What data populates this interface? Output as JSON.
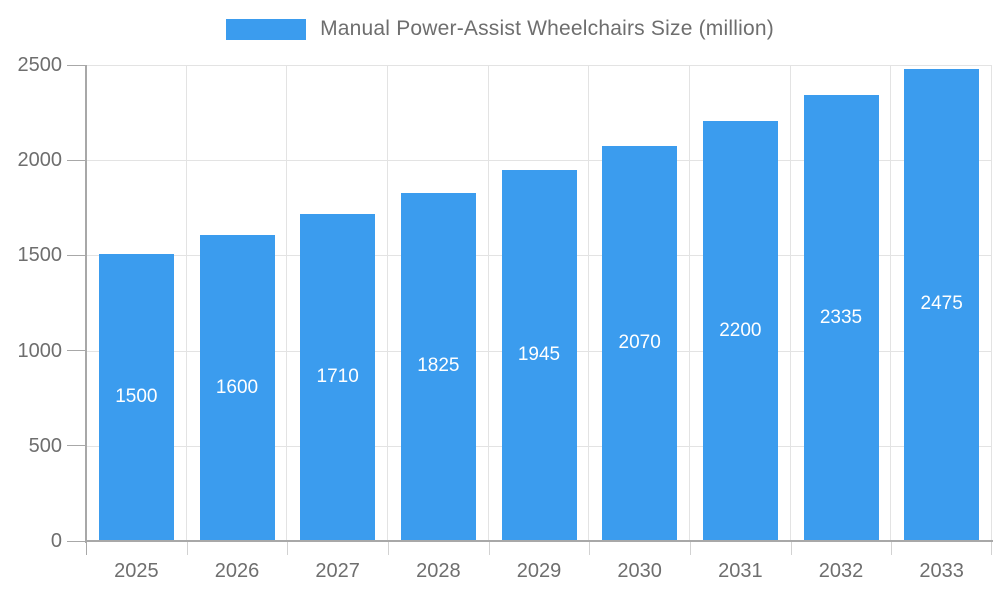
{
  "legend": {
    "label": "Manual Power-Assist Wheelchairs Size (million)"
  },
  "chart_data": {
    "type": "bar",
    "title": "Manual Power-Assist Wheelchairs Size (million)",
    "categories": [
      "2025",
      "2026",
      "2027",
      "2028",
      "2029",
      "2030",
      "2031",
      "2032",
      "2033"
    ],
    "values": [
      1500,
      1600,
      1710,
      1825,
      1945,
      2070,
      2200,
      2335,
      2475
    ],
    "xlabel": "",
    "ylabel": "",
    "ylim": [
      0,
      2500
    ],
    "yticks": [
      0,
      500,
      1000,
      1500,
      2000,
      2500
    ],
    "grid": true,
    "legend_position": "top",
    "value_labels": "inside-middle"
  },
  "colors": {
    "bar": "#3B9CEE",
    "value_text": "#ffffff",
    "axis_line": "#a8a8a8",
    "gridline": "#e3e3e3",
    "tick_mark_x": "#d2d2d2",
    "tick_mark_y": "#a8a8a8",
    "tick_text": "#6e6e6e",
    "legend_text": "#6e6e6e",
    "background": "#ffffff"
  }
}
